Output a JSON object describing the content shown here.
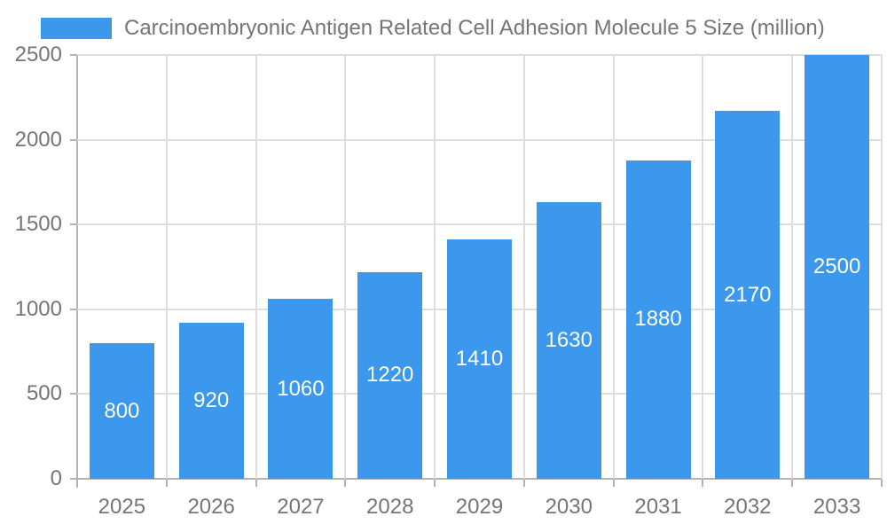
{
  "chart_data": {
    "type": "bar",
    "title": "Carcinoembryonic Antigen Related Cell Adhesion Molecule 5 Size (million)",
    "legend": {
      "label": "Carcinoembryonic Antigen Related Cell Adhesion Molecule 5 Size (million)",
      "position": "top-left"
    },
    "categories": [
      "2025",
      "2026",
      "2027",
      "2028",
      "2029",
      "2030",
      "2031",
      "2032",
      "2033"
    ],
    "values": [
      800,
      920,
      1060,
      1220,
      1410,
      1630,
      1880,
      2170,
      2500
    ],
    "value_labels": [
      "800",
      "920",
      "1060",
      "1220",
      "1410",
      "1630",
      "1880",
      "2170",
      "2500"
    ],
    "xlabel": "",
    "ylabel": "",
    "ylim": [
      0,
      2500
    ],
    "yticks": [
      0,
      500,
      1000,
      1500,
      2000,
      2500
    ],
    "grid": true,
    "colors": {
      "bar": "#3B98EC",
      "bar_label_text": "#FFFFFF",
      "axis_text": "#757575",
      "gridline": "#DDDDDD",
      "axis_line": "#B3B3B3",
      "background": "#FFFFFF"
    }
  }
}
